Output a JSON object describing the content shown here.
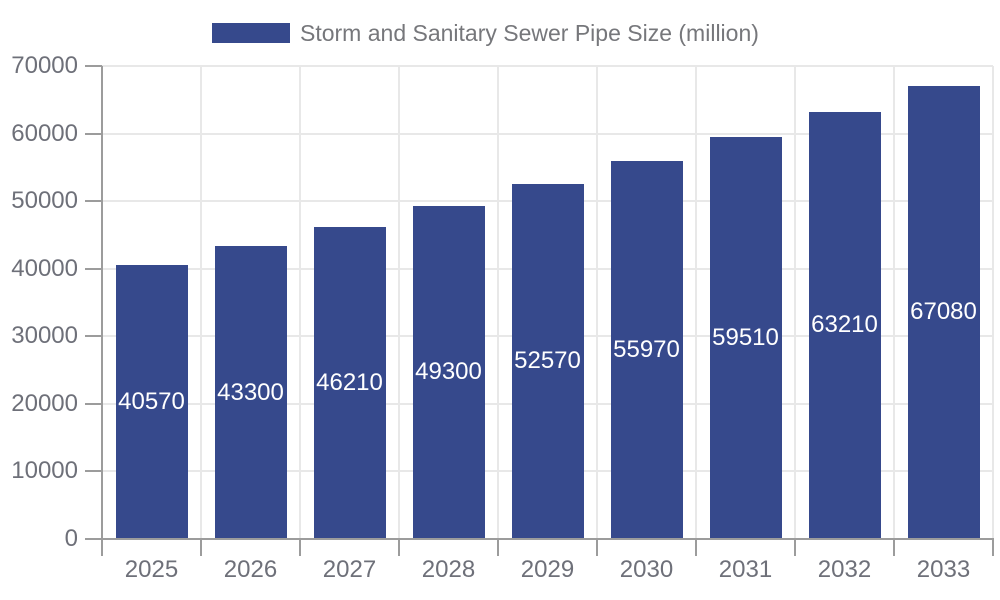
{
  "chart_data": {
    "type": "bar",
    "title": "Storm and Sanitary Sewer Pipe Size (million)",
    "categories": [
      "2025",
      "2026",
      "2027",
      "2028",
      "2029",
      "2030",
      "2031",
      "2032",
      "2033"
    ],
    "values": [
      40570,
      43300,
      46210,
      49300,
      52570,
      55970,
      59510,
      63210,
      67080
    ],
    "value_labels": [
      "40570",
      "43300",
      "46210",
      "49300",
      "52570",
      "55970",
      "59510",
      "63210",
      "67080"
    ],
    "xlabel": "",
    "ylabel": "",
    "ylim": [
      0,
      70000
    ],
    "y_ticks": [
      0,
      10000,
      20000,
      30000,
      40000,
      50000,
      60000,
      70000
    ],
    "y_tick_labels": [
      "0",
      "10000",
      "20000",
      "30000",
      "40000",
      "50000",
      "60000",
      "70000"
    ],
    "grid": true,
    "legend_position": "top",
    "bar_color": "#36498c",
    "grid_color": "#e8e8e8",
    "axis_color": "#9c9c9c",
    "tick_text_color": "#6e7079",
    "legend_text_color": "#76777b",
    "value_label_color": "#ffffff"
  }
}
